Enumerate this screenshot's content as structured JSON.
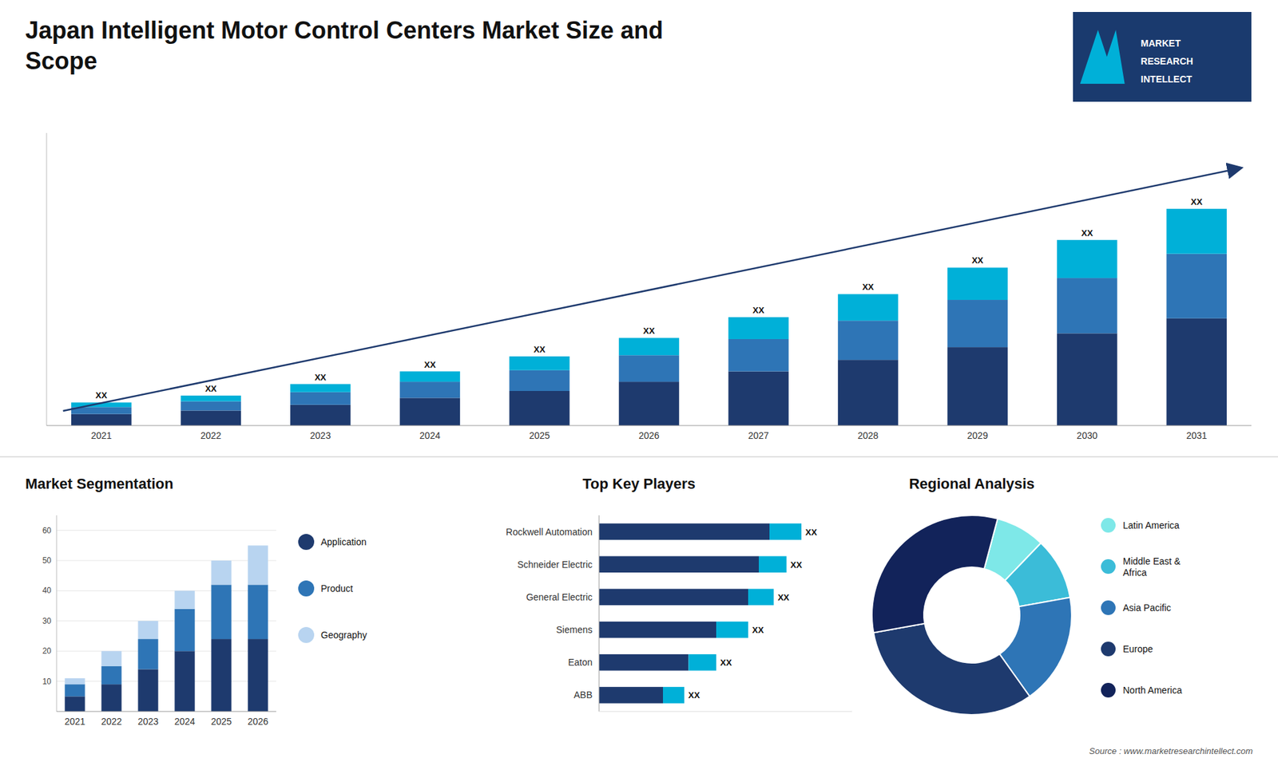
{
  "title": "Japan Intelligent Motor Control Centers Market Size and\nScope",
  "annotations": [
    "MARKET",
    "RESEARCH",
    "INTELLECT",
    "Source : www.marketresearchintellect.com"
  ],
  "chart_data": [
    {
      "type": "bar",
      "stacked": true,
      "categories": [
        "2021",
        "2022",
        "2023",
        "2024",
        "2025",
        "2026",
        "2027",
        "2028",
        "2029",
        "2030",
        "2031"
      ],
      "series": [
        {
          "color": "#1e3a6e",
          "values": [
            1.0,
            1.3,
            1.8,
            2.4,
            3.0,
            3.8,
            4.7,
            5.7,
            6.8,
            8.0,
            9.3
          ]
        },
        {
          "color": "#2e75b6",
          "values": [
            0.6,
            0.8,
            1.1,
            1.4,
            1.8,
            2.3,
            2.8,
            3.4,
            4.1,
            4.8,
            5.6
          ]
        },
        {
          "color": "#00b0d8",
          "values": [
            0.4,
            0.5,
            0.7,
            0.9,
            1.2,
            1.5,
            1.9,
            2.3,
            2.8,
            3.3,
            3.9
          ],
          "value_labels": [
            "XX",
            "XX",
            "XX",
            "XX",
            "XX",
            "XX",
            "XX",
            "XX",
            "XX",
            "XX",
            "XX"
          ]
        }
      ],
      "ylim": [
        0,
        25.38
      ],
      "tick_labels": "x",
      "grid": false
    },
    {
      "type": "bar",
      "title": "Market Segmentation",
      "stacked": true,
      "categories": [
        "2021",
        "2022",
        "2023",
        "2024",
        "2025",
        "2026"
      ],
      "series": [
        {
          "name": "Application",
          "color": "#1e3a6e",
          "values": [
            5,
            9,
            14,
            20,
            24,
            24
          ]
        },
        {
          "name": "Product",
          "color": "#2e75b6",
          "values": [
            4,
            6,
            10,
            14,
            18,
            18
          ]
        },
        {
          "name": "Geography",
          "color": "#b8d4f0",
          "values": [
            2,
            5,
            6,
            6,
            8,
            13
          ]
        }
      ],
      "ylim": [
        0,
        65
      ],
      "yticks": [
        10,
        20,
        30,
        40,
        50,
        60
      ],
      "grid": true,
      "legend": "right"
    },
    {
      "type": "bar",
      "title": "Top Key Players",
      "orientation": "horizontal",
      "stacked": true,
      "categories": [
        "Rockwell Automation",
        "Schneider Electric",
        "General Electric",
        "Siemens",
        "Eaton",
        "ABB"
      ],
      "series": [
        {
          "color": "#1e3a6e",
          "values": [
            8.0,
            7.5,
            7.0,
            5.5,
            4.2,
            3.0
          ]
        },
        {
          "color": "#00b0d8",
          "values": [
            1.5,
            1.3,
            1.2,
            1.5,
            1.3,
            1.0
          ],
          "value_labels": [
            "XX",
            "XX",
            "XX",
            "XX",
            "XX",
            "XX"
          ]
        }
      ],
      "xlim": [
        0,
        11.875
      ],
      "tick_labels": "y",
      "grid": false
    },
    {
      "type": "donut",
      "title": "Regional Analysis",
      "categories": [
        "Latin America",
        "Middle East &\nAfrica",
        "Asia Pacific",
        "Europe",
        "North America"
      ],
      "values": [
        8,
        10,
        18,
        32,
        32
      ],
      "colors": [
        "#7ee8e8",
        "#3bbcd8",
        "#2e75b6",
        "#1e3a6e",
        "#12235a"
      ],
      "legend": "right"
    }
  ]
}
